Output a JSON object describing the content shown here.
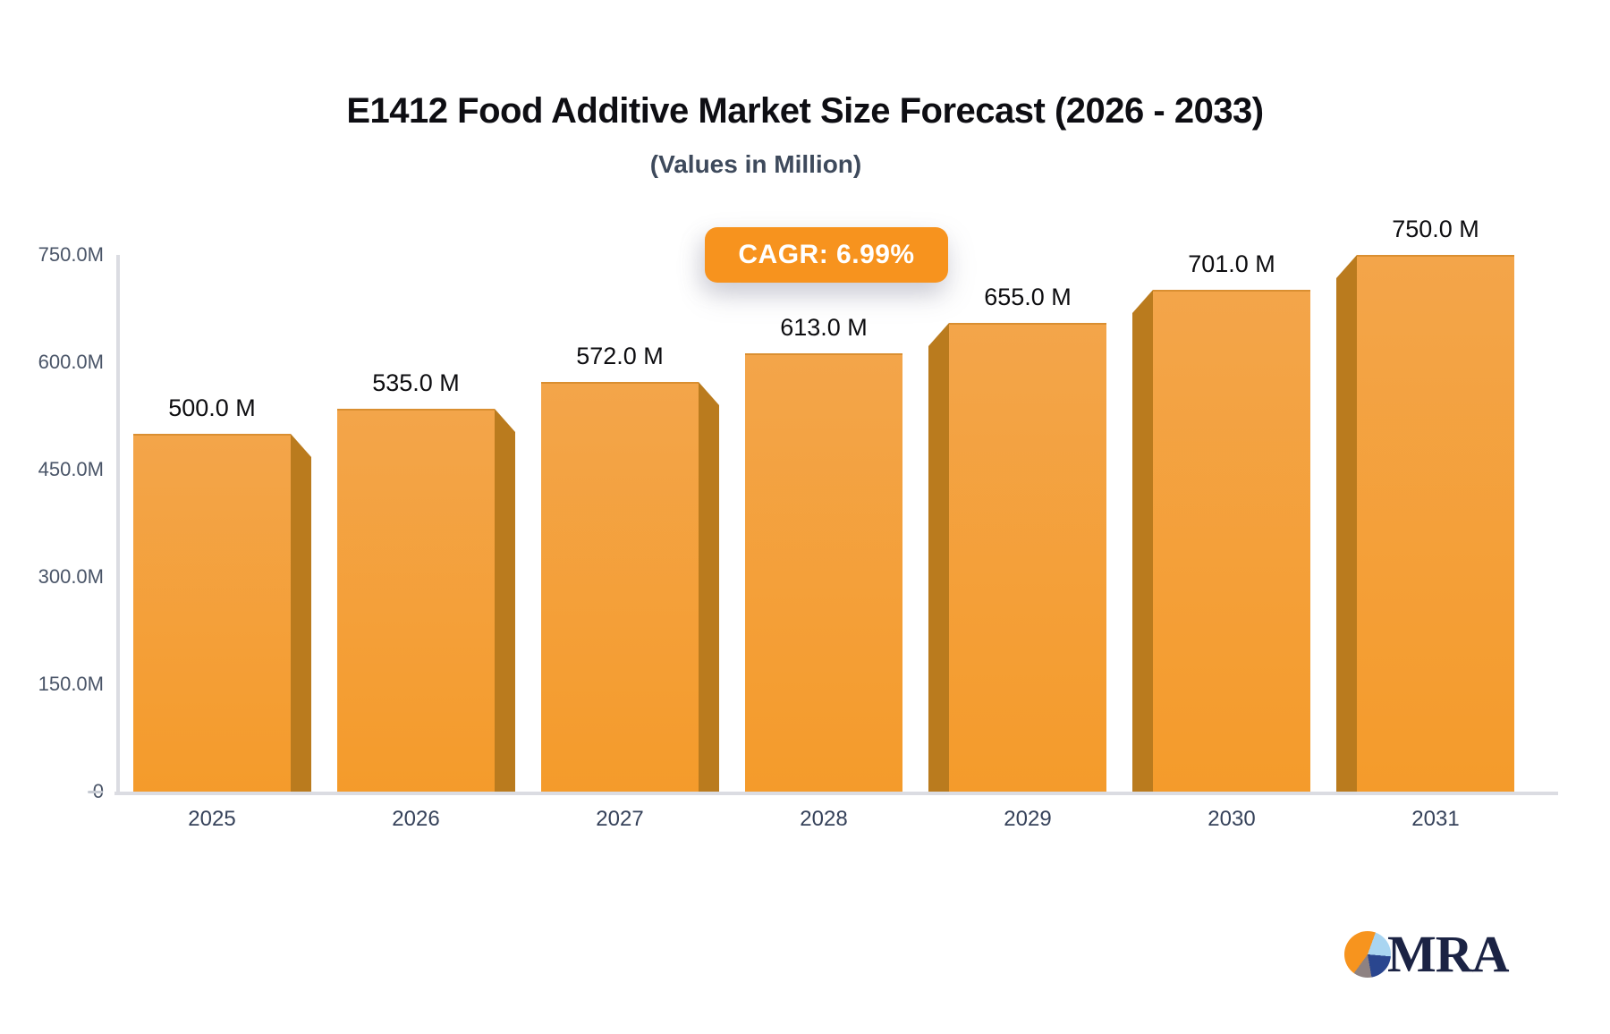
{
  "header": {
    "title": "E1412 Food Additive Market Size Forecast (2026 - 2033)",
    "subtitle": "(Values in Million)"
  },
  "badge": {
    "label": "CAGR: 6.99%"
  },
  "logo": {
    "text": "MRA",
    "icon": "pie-chart-icon"
  },
  "colors": {
    "bar_face_top": "#f3a54a",
    "bar_face_bottom": "#f49b2b",
    "bar_side": "#ba7b1e",
    "badge_background": "#f7931e",
    "badge_text": "#ffffff",
    "title_text": "#0e0e13",
    "subtitle_text": "#3e4a5c",
    "axis_label": "#4a5568",
    "x_label": "#36425a",
    "value_label": "#0d0d10",
    "axis_line": "#dbdce2",
    "logo_navy": "#1b2344"
  },
  "chart_data": {
    "type": "bar",
    "title": "E1412 Food Additive Market Size Forecast (2026 - 2033)",
    "subtitle": "(Values in Million)",
    "annotation": "CAGR: 6.99%",
    "unit": "Million",
    "categories": [
      "2025",
      "2026",
      "2027",
      "2028",
      "2029",
      "2030",
      "2031"
    ],
    "values": [
      500,
      535,
      572,
      613,
      655,
      701,
      750
    ],
    "value_labels": [
      "500.0 M",
      "535.0 M",
      "572.0 M",
      "613.0 M",
      "655.0 M",
      "701.0 M",
      "750.0 M"
    ],
    "ylim": [
      0,
      750
    ],
    "y_ticks": [
      {
        "label": "750.0M",
        "value": 750
      },
      {
        "label": "600.0M",
        "value": 600
      },
      {
        "label": "450.0M",
        "value": 450
      },
      {
        "label": "300.0M",
        "value": 300
      },
      {
        "label": "150.0M",
        "value": 150
      },
      {
        "label": "0",
        "value": 0
      }
    ],
    "grid": false,
    "legend": false,
    "style": "3d-bars, perspective toward center; left bars show right side face, right bars show left side face"
  }
}
